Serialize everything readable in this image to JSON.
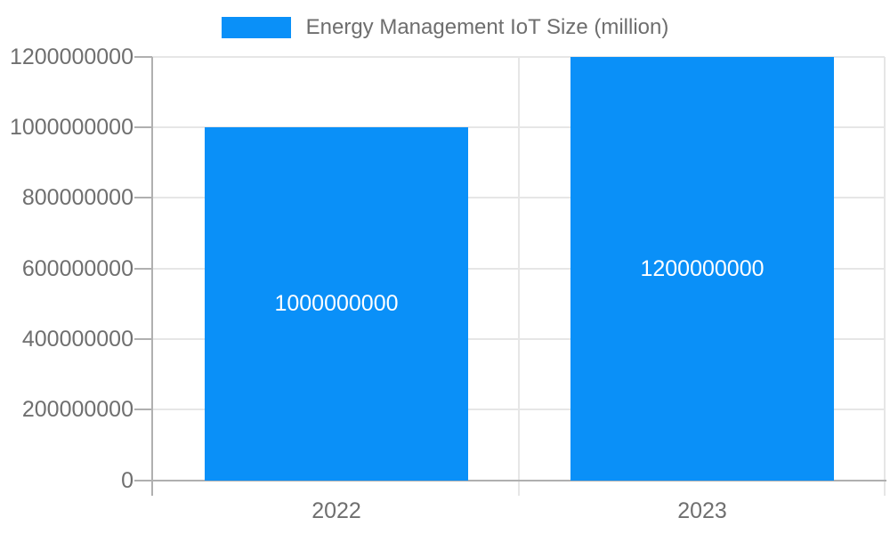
{
  "chart_data": {
    "type": "bar",
    "title": "Energy Management IoT Size (million)",
    "categories": [
      "2022",
      "2023"
    ],
    "series": [
      {
        "name": "Energy Management IoT Size (million)",
        "values": [
          1000000000,
          1200000000
        ],
        "value_labels": [
          "1000000000",
          "1200000000"
        ]
      }
    ],
    "ylim": [
      0,
      1200000000
    ],
    "ytick_step": 200000000,
    "yticks": [
      0,
      200000000,
      400000000,
      600000000,
      800000000,
      1000000000,
      1200000000
    ],
    "ytick_labels": [
      "0",
      "200000000",
      "400000000",
      "600000000",
      "800000000",
      "1000000000",
      "1200000000"
    ],
    "grid": true,
    "legend_position": "top",
    "colors": {
      "bar": "#0a90f8",
      "grid": "#e6e6e6",
      "axis": "#b0b0b0",
      "tick_label": "#6f6f6f",
      "legend_label": "#6e6e6e",
      "bar_label": "#ffffff",
      "background": "#ffffff"
    }
  }
}
